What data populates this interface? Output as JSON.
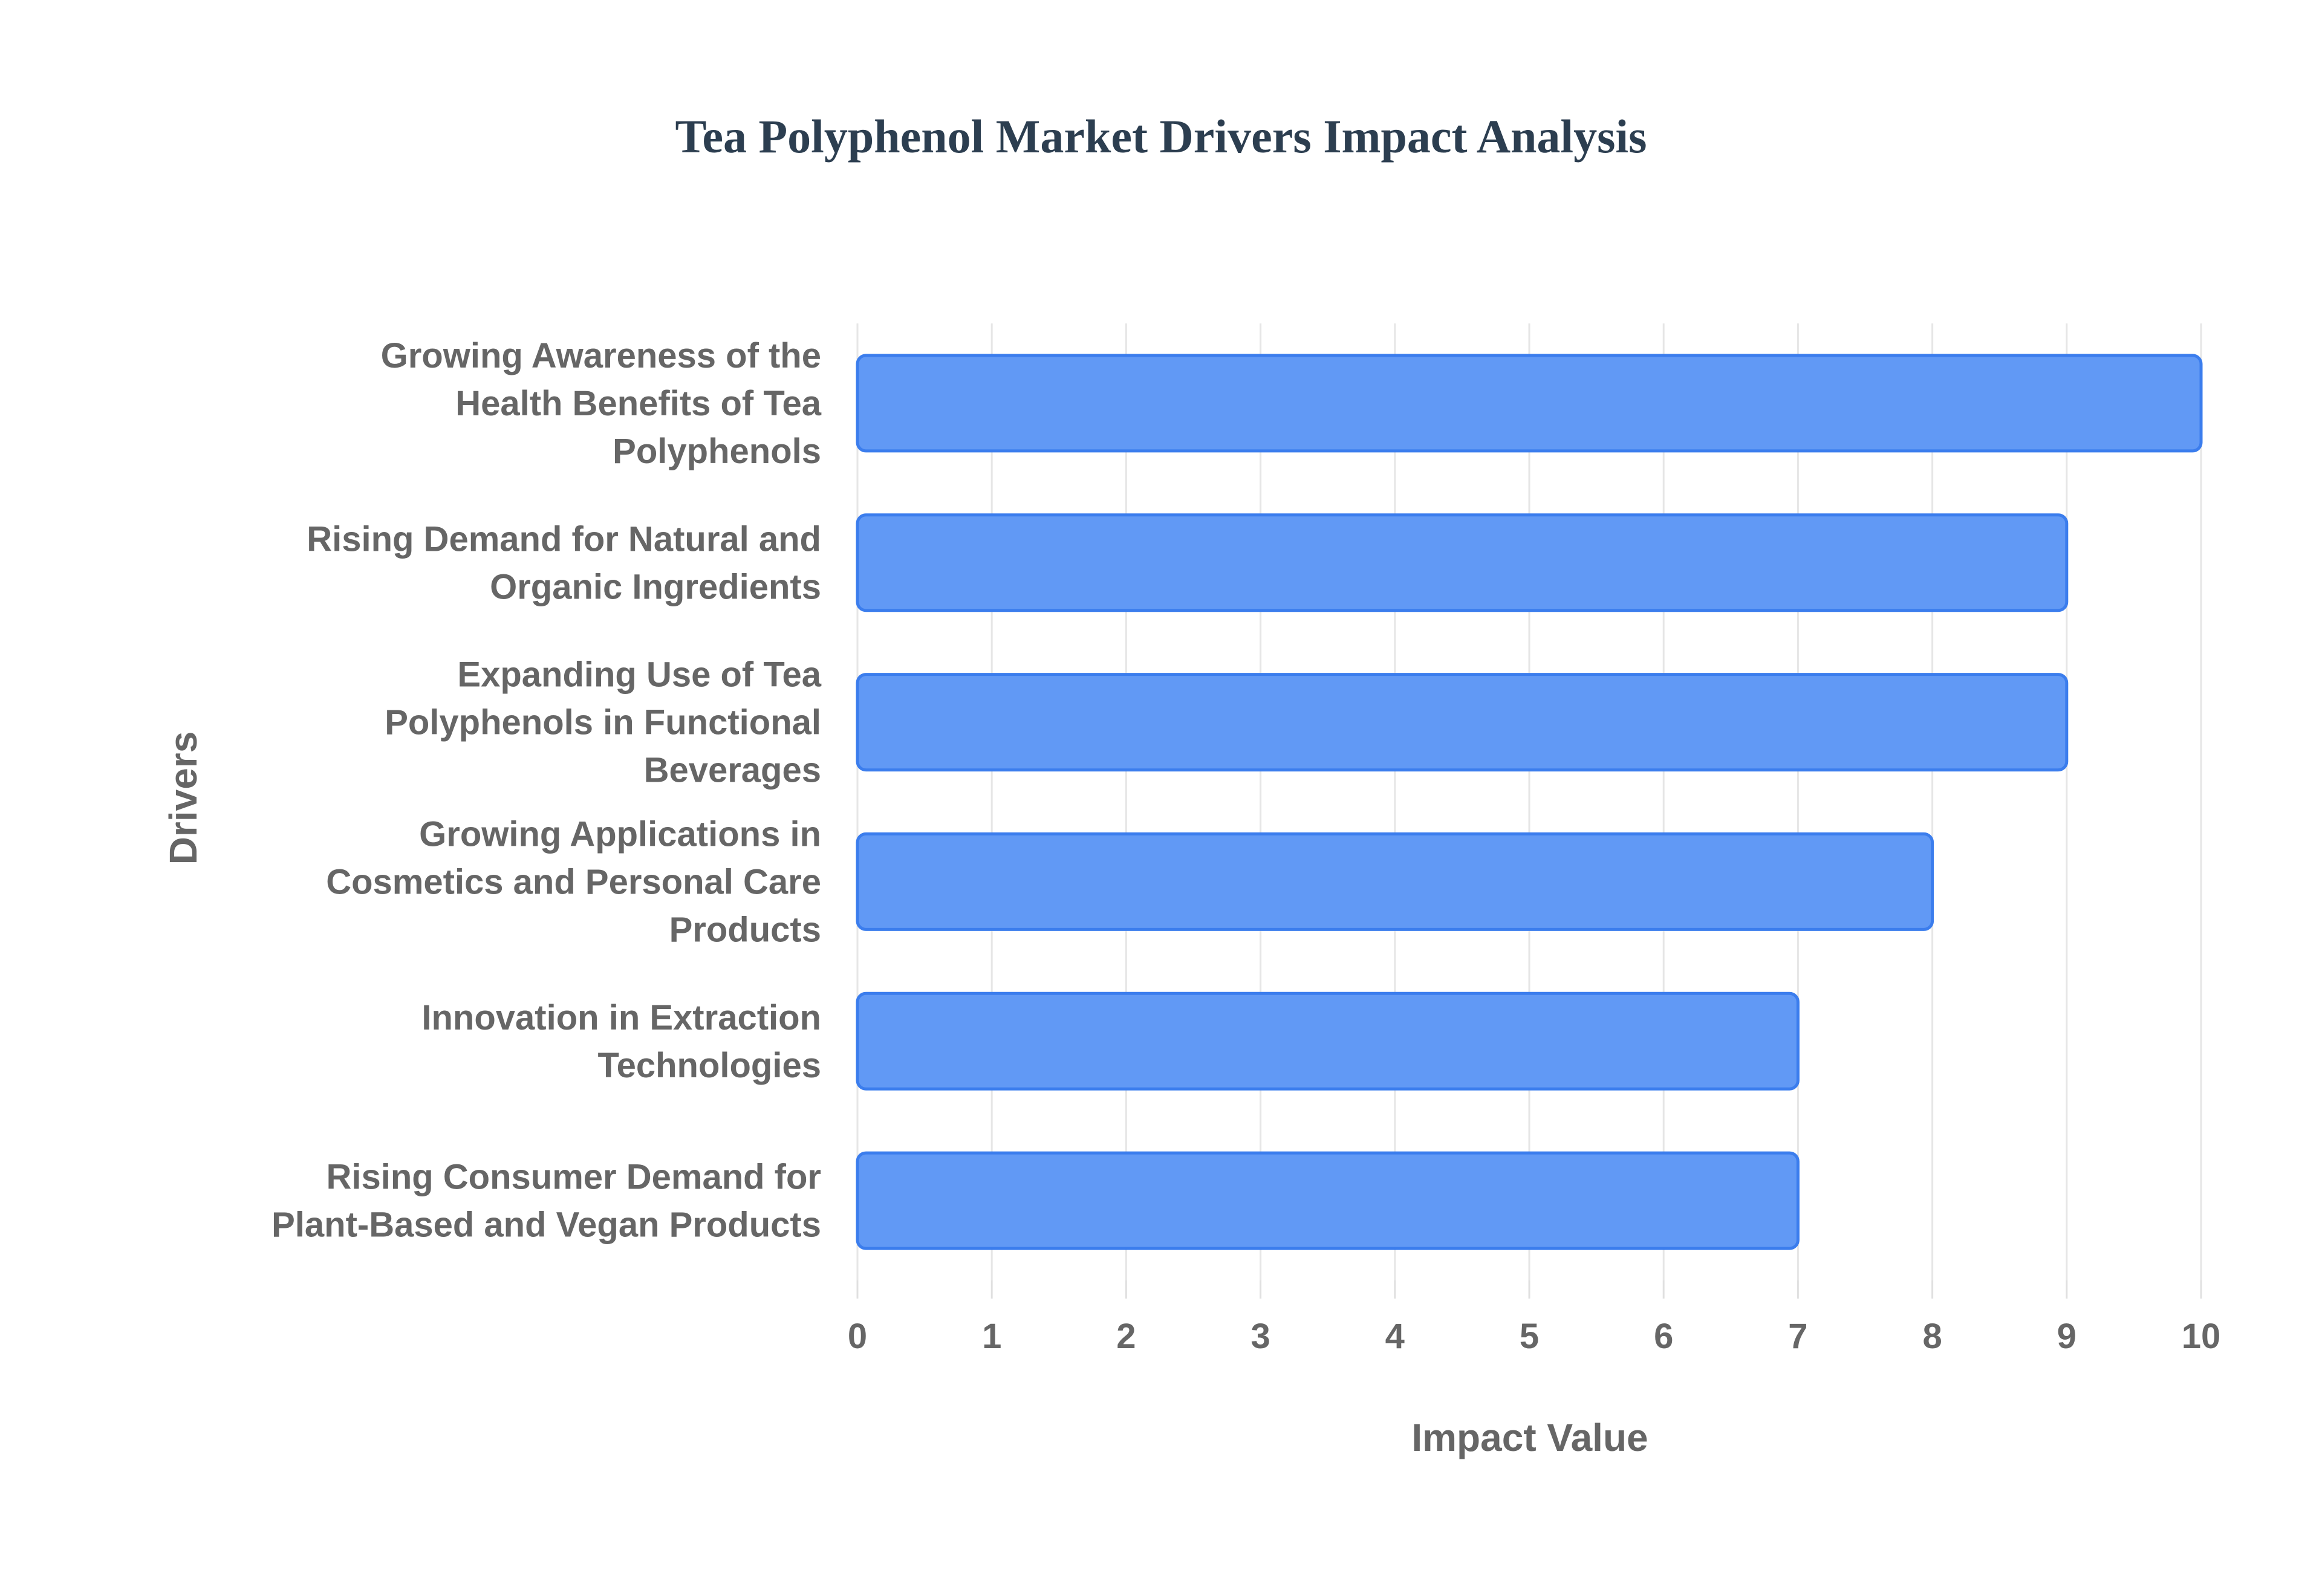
{
  "chart_data": {
    "type": "bar",
    "orientation": "horizontal",
    "title": "Tea Polyphenol Market Drivers Impact Analysis",
    "xlabel": "Impact Value",
    "ylabel": "Drivers",
    "xlim": [
      0,
      10
    ],
    "x_ticks": [
      "0",
      "1",
      "2",
      "3",
      "4",
      "5",
      "6",
      "7",
      "8",
      "9",
      "10"
    ],
    "grid": true,
    "legend": "none",
    "categories": [
      [
        "Growing Awareness of the",
        "Health Benefits of Tea",
        "Polyphenols"
      ],
      [
        "Rising Demand for Natural and",
        "Organic Ingredients"
      ],
      [
        "Expanding Use of Tea",
        "Polyphenols in Functional",
        "Beverages"
      ],
      [
        "Growing Applications in",
        "Cosmetics and Personal Care",
        "Products"
      ],
      [
        "Innovation in Extraction",
        "Technologies"
      ],
      [
        "Rising Consumer Demand for",
        "Plant-Based and Vegan Products"
      ]
    ],
    "values": [
      10,
      9,
      9,
      8,
      7,
      7
    ],
    "colors": {
      "bar_fill": "#6199f5",
      "bar_stroke": "#3b7ded",
      "title": "#2c3e50",
      "text": "#666666",
      "grid": "#e6e6e6"
    }
  }
}
